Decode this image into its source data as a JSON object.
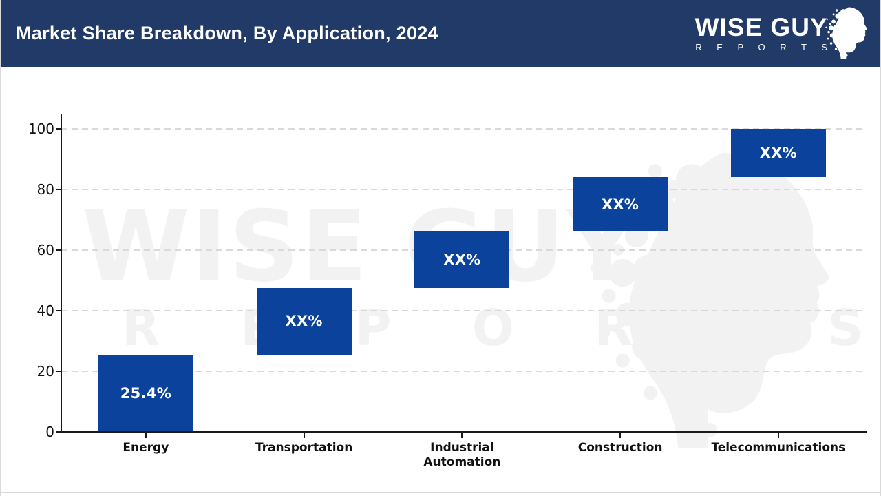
{
  "header": {
    "title": "Market Share Breakdown, By Application, 2024",
    "logo": {
      "wordmark": "WISE GUY",
      "wordmark_sub": "R E P O R T S",
      "icon": "dotted-head-profile-icon"
    }
  },
  "watermark": {
    "wordmark": "WISE GUY",
    "wordmark_sub": "R E P O R T S"
  },
  "colors": {
    "header_bg": "#223a68",
    "header_text": "#ffffff",
    "bar": "#0a429c",
    "bar_label": "#ffffff",
    "grid": "#d9d9d9",
    "axis": "#1a1a1a",
    "tick_text": "#111111",
    "watermark": "#f2f2f2"
  },
  "chart_data": {
    "type": "bar",
    "variant": "waterfall",
    "title": "Market Share Breakdown, By Application, 2024",
    "categories": [
      "Energy",
      "Transportation",
      "Industrial Automation",
      "Construction",
      "Telecommunications"
    ],
    "xtick_lines": [
      [
        "Energy"
      ],
      [
        "Transportation"
      ],
      [
        "Industrial",
        "Automation"
      ],
      [
        "Construction"
      ],
      [
        "Telecommunications"
      ]
    ],
    "series": [
      {
        "name": "Market Share (%)",
        "segments": [
          {
            "category": "Energy",
            "start": 0,
            "end": 25.4,
            "label": "25.4%"
          },
          {
            "category": "Transportation",
            "start": 25.4,
            "end": 47.6,
            "label": "XX%"
          },
          {
            "category": "Industrial Automation",
            "start": 47.6,
            "end": 66.1,
            "label": "XX%"
          },
          {
            "category": "Construction",
            "start": 66.1,
            "end": 84.1,
            "label": "XX%"
          },
          {
            "category": "Telecommunications",
            "start": 84.1,
            "end": 100,
            "label": "XX%"
          }
        ]
      }
    ],
    "xlabel": "",
    "ylabel": "",
    "ylim": [
      0,
      105
    ],
    "yticks": [
      0,
      20,
      40,
      60,
      80,
      100
    ],
    "grid": "dashed-horizontal",
    "legend": "none"
  }
}
